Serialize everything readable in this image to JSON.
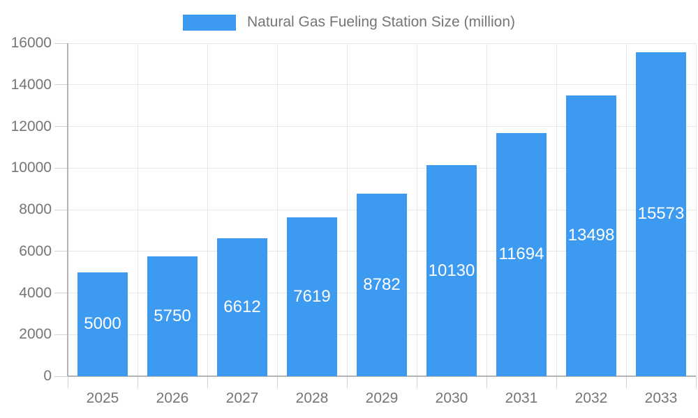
{
  "legend": {
    "label": "Natural Gas Fueling Station Size (million)"
  },
  "colors": {
    "bar": "#3D9AF1",
    "bar_label": "#ffffff",
    "axis_text": "#757575",
    "grid_line": "#e6e6e6",
    "tick_line": "#d2d2d2",
    "axis_line": "#b3b3b3",
    "background": "#ffffff"
  },
  "chart_data": {
    "type": "bar",
    "title": "Natural Gas Fueling Station Size (million)",
    "categories": [
      "2025",
      "2026",
      "2027",
      "2028",
      "2029",
      "2030",
      "2031",
      "2032",
      "2033"
    ],
    "values": [
      5000,
      5750,
      6612,
      7619,
      8782,
      10130,
      11694,
      13498,
      15573
    ],
    "series": [
      {
        "name": "Natural Gas Fueling Station Size (million)",
        "values": [
          5000,
          5750,
          6612,
          7619,
          8782,
          10130,
          11694,
          13498,
          15573
        ]
      }
    ],
    "xlabel": "",
    "ylabel": "",
    "ylim": [
      0,
      16000
    ],
    "yticks": [
      0,
      2000,
      4000,
      6000,
      8000,
      10000,
      12000,
      14000,
      16000
    ],
    "grid": "both",
    "legend_position": "top-center",
    "bar_label_position": "inside-center"
  }
}
